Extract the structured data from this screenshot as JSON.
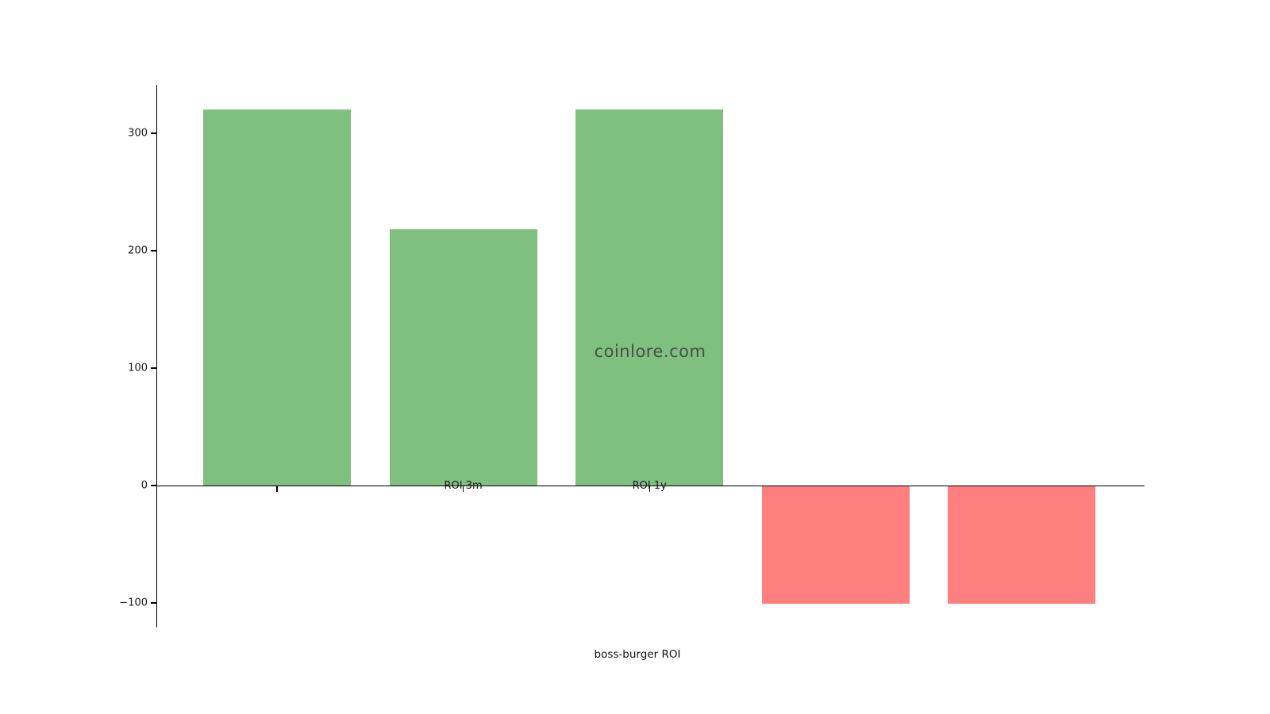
{
  "watermark": {
    "text": "coinlore.com"
  },
  "chart_data": {
    "type": "bar",
    "title": "boss-burger ROI",
    "categories": [
      "",
      "ROI 3m",
      "ROI 1y",
      "",
      ""
    ],
    "values": [
      320,
      218,
      320,
      -100,
      -100
    ],
    "bar_colors": [
      "#7fbf7f",
      "#7fbf7f",
      "#7fbf7f",
      "#ff7f7f",
      "#ff7f7f"
    ],
    "positive_color": "#7fbf7f",
    "negative_color": "#ff7f7f",
    "yticks": [
      300,
      200,
      100,
      0,
      -100
    ],
    "ytick_labels": [
      "300",
      "200",
      "100",
      "0",
      "−100"
    ],
    "xticks_shown": [
      0,
      1,
      2
    ],
    "ylim": [
      -121,
      341
    ],
    "xlabel": "",
    "ylabel": "",
    "grid": false,
    "legend_position": "none",
    "axis_color": "#000000",
    "background_color": "#ffffff"
  }
}
